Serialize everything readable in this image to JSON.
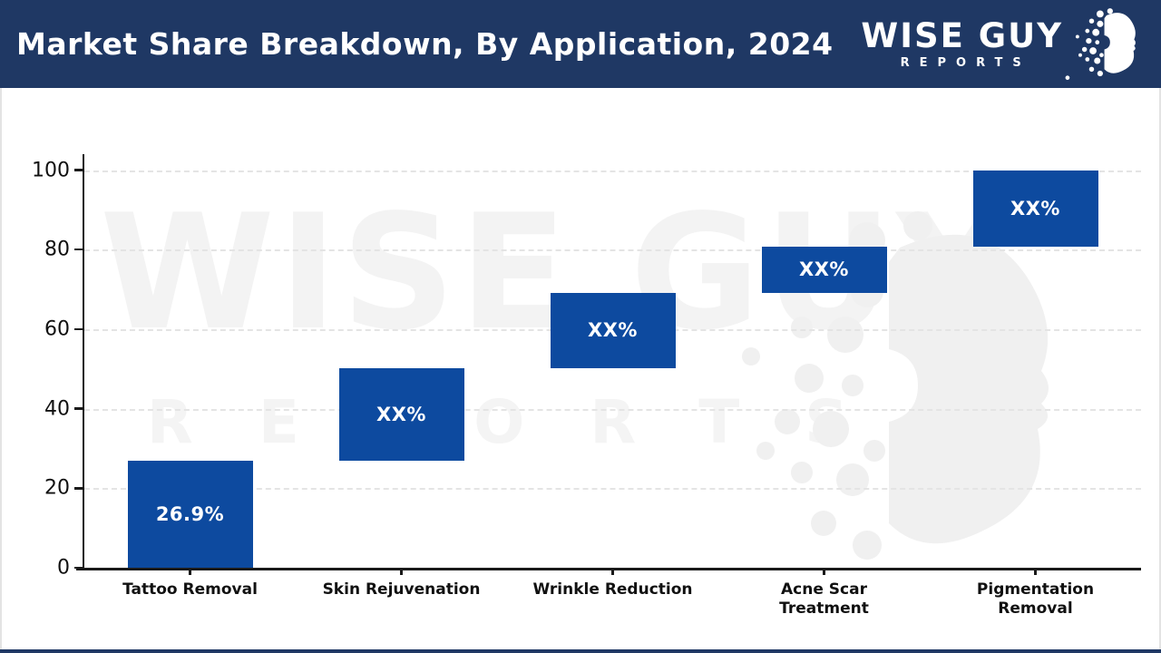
{
  "header": {
    "title": "Market Share Breakdown, By Application, 2024",
    "logo": {
      "line1": "WISE GUY",
      "line2": "REPORTS"
    }
  },
  "watermark": {
    "line1": "WISE GUY",
    "line2": "REPORTS"
  },
  "chart_data": {
    "type": "bar",
    "subtype": "waterfall-floating-bars",
    "title": "Market Share Breakdown, By Application, 2024",
    "categories": [
      "Tattoo Removal",
      "Skin Rejuvenation",
      "Wrinkle Reduction",
      "Acne Scar\nTreatment",
      "Pigmentation\nRemoval"
    ],
    "segments": [
      {
        "name": "Tattoo Removal",
        "start": 0,
        "end": 26.9,
        "value": 26.9,
        "label": "26.9%"
      },
      {
        "name": "Skin Rejuvenation",
        "start": 26.9,
        "end": 50.1,
        "value": 23.2,
        "label": "XX%"
      },
      {
        "name": "Wrinkle Reduction",
        "start": 50.1,
        "end": 69.2,
        "value": 19.1,
        "label": "XX%"
      },
      {
        "name": "Acne Scar Treatment",
        "start": 69.2,
        "end": 80.7,
        "value": 11.5,
        "label": "XX%"
      },
      {
        "name": "Pigmentation Removal",
        "start": 80.7,
        "end": 100,
        "value": 19.3,
        "label": "XX%"
      }
    ],
    "yticks": [
      0,
      20,
      40,
      60,
      80,
      100
    ],
    "ylim": [
      0,
      104
    ],
    "xlabel": "",
    "ylabel": "",
    "grid": "horizontal-dashed",
    "legend_position": "none",
    "bar_color": "#0d4a9f",
    "bar_label_color": "#ffffff",
    "axis_color": "#1a1a1a",
    "gridline_color": "#e4e4e4"
  },
  "colors": {
    "header_bg": "#1f3864",
    "footer_bg": "#1f3864",
    "canvas_bg": "#ffffff",
    "watermark": "#f3f3f3"
  }
}
